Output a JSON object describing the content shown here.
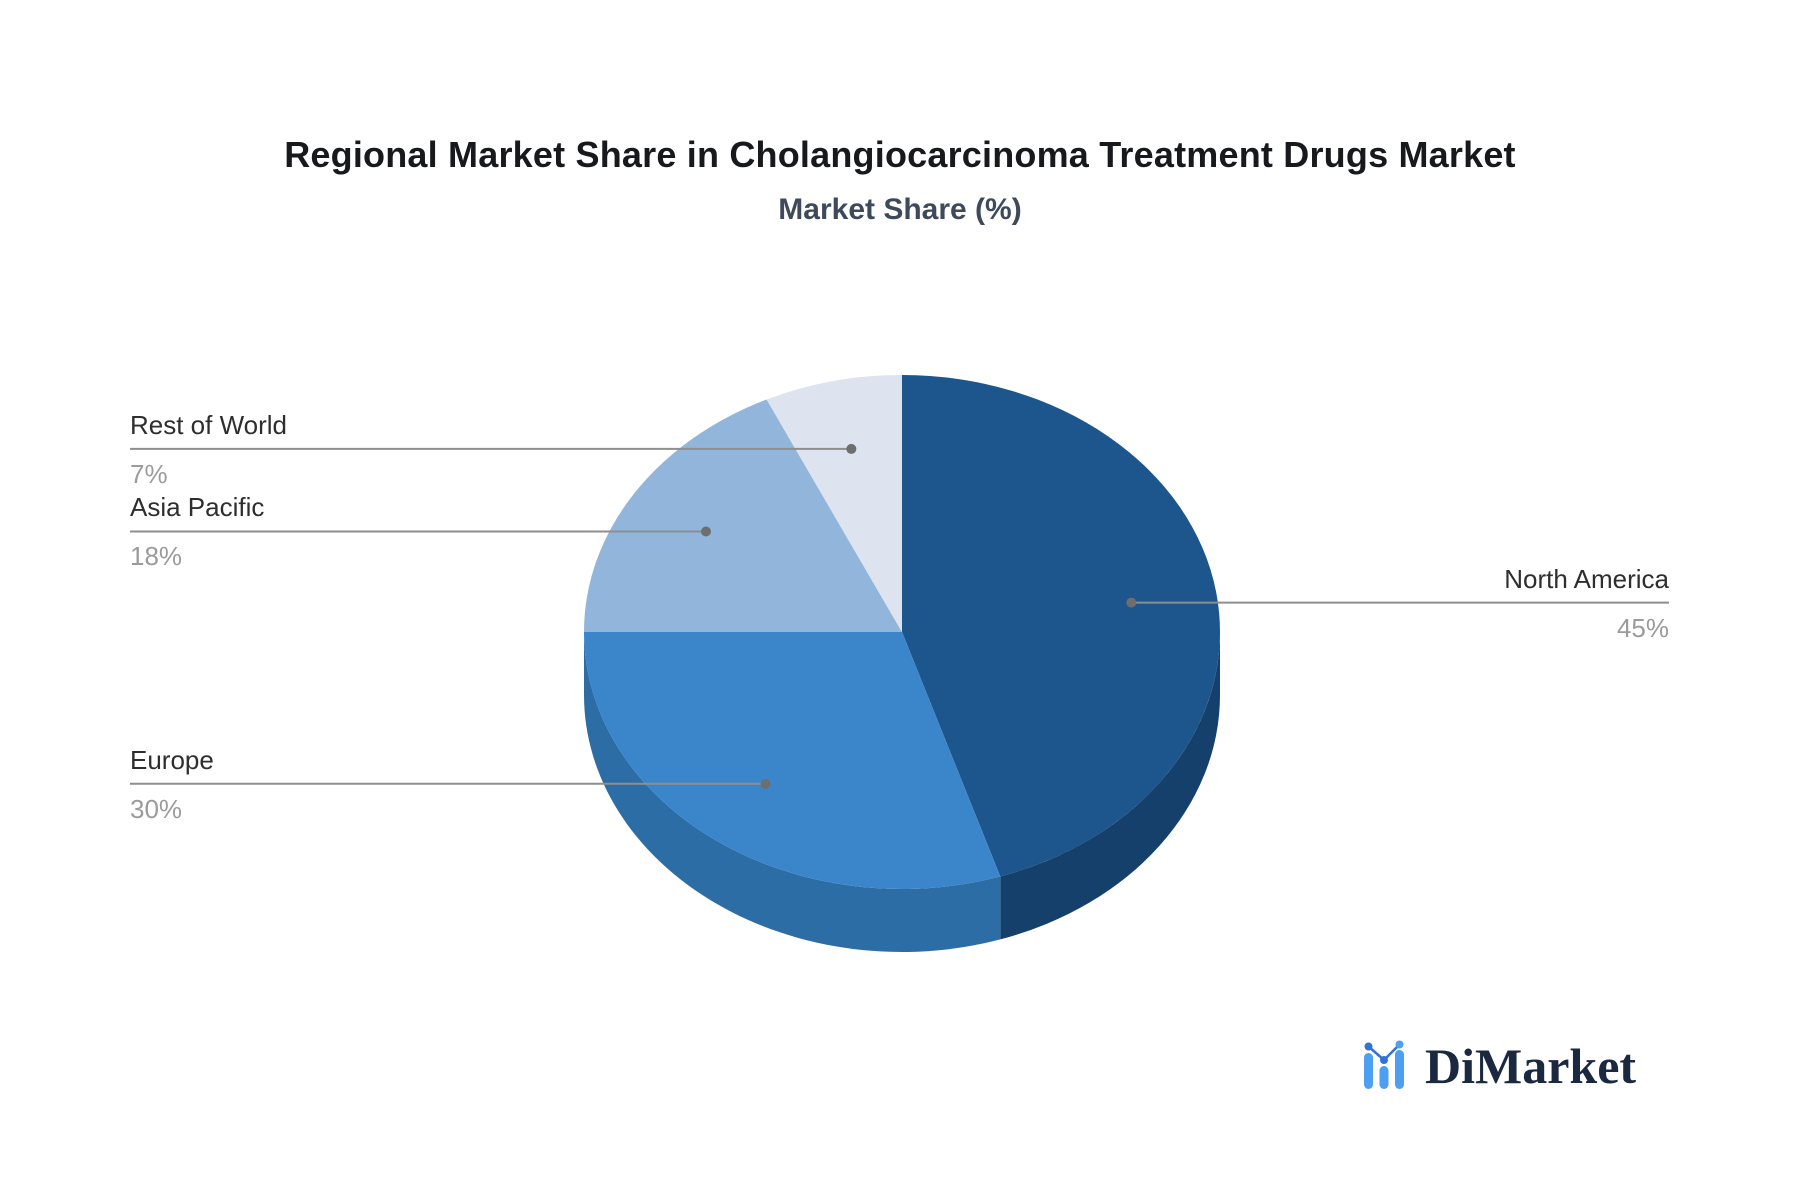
{
  "header": {
    "title": "Regional Market Share in Cholangiocarcinoma Treatment Drugs Market",
    "subtitle": "Market Share (%)"
  },
  "chart_data": {
    "type": "pie",
    "style": "3d",
    "title": "Regional Market Share in Cholangiocarcinoma Treatment Drugs Market",
    "subtitle": "Market Share (%)",
    "unit": "%",
    "start_angle": "12 o'clock, clockwise",
    "legend_position": "callout-labels",
    "slices": [
      {
        "label": "North America",
        "value": 45,
        "value_label": "45%",
        "color": "#1D568C",
        "side_color": "#15406B"
      },
      {
        "label": "Europe",
        "value": 30,
        "value_label": "30%",
        "color": "#3B86CA",
        "side_color": "#2D6DA6"
      },
      {
        "label": "Asia Pacific",
        "value": 18,
        "value_label": "18%",
        "color": "#92B5DC",
        "side_color": "#7AA0CB"
      },
      {
        "label": "Rest of World",
        "value": 7,
        "value_label": "7%",
        "color": "#DDE4EF",
        "side_color": "#C9D3E2"
      }
    ]
  },
  "branding": {
    "logo_text": "DiMarket",
    "logo_icon": "bar-line-chart-icon",
    "logo_text_color": "#1A2840",
    "logo_bar_color": "#4D9FF1",
    "logo_dot_color": "#2E73DC"
  },
  "style": {
    "leader_line_color": "#8E8E8E",
    "leader_dot_color": "#6E6E6E",
    "label_color": "#2E2E2E",
    "value_color": "#9B9B9B",
    "background": "#FFFFFF"
  }
}
